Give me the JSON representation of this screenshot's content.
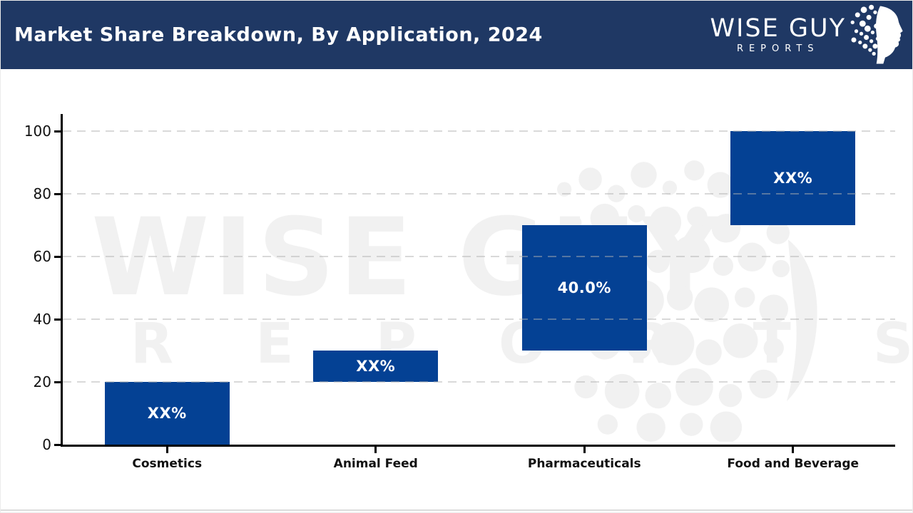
{
  "header": {
    "title": "Market Share Breakdown, By Application, 2024",
    "bg_color": "#1F3864",
    "logo": {
      "line1": "WISE GUY",
      "line2": "REPORTS"
    }
  },
  "watermark": {
    "line1": "WISE GUY",
    "line2": "R E P O R T S"
  },
  "chart_data": {
    "type": "bar",
    "subtype": "waterfall-floating-bars",
    "title": "Market Share Breakdown, By Application, 2024",
    "xlabel": "",
    "ylabel": "",
    "categories": [
      "Cosmetics",
      "Animal Feed",
      "Pharmaceuticals",
      "Food and Beverage"
    ],
    "bars": [
      {
        "category": "Cosmetics",
        "start": 0,
        "end": 20,
        "label": "XX%"
      },
      {
        "category": "Animal Feed",
        "start": 20,
        "end": 30,
        "label": "XX%"
      },
      {
        "category": "Pharmaceuticals",
        "start": 30,
        "end": 70,
        "label": "40.0%"
      },
      {
        "category": "Food and Beverage",
        "start": 70,
        "end": 100,
        "label": "XX%"
      }
    ],
    "y_ticks": [
      0,
      20,
      40,
      60,
      80,
      100
    ],
    "ylim": [
      0,
      106
    ],
    "grid": true,
    "grid_style": "dashed",
    "legend": false,
    "bar_color": "#044194",
    "bar_label_color": "#FFFFFF",
    "axis_color": "#000000",
    "header_color": "#1F3864"
  }
}
